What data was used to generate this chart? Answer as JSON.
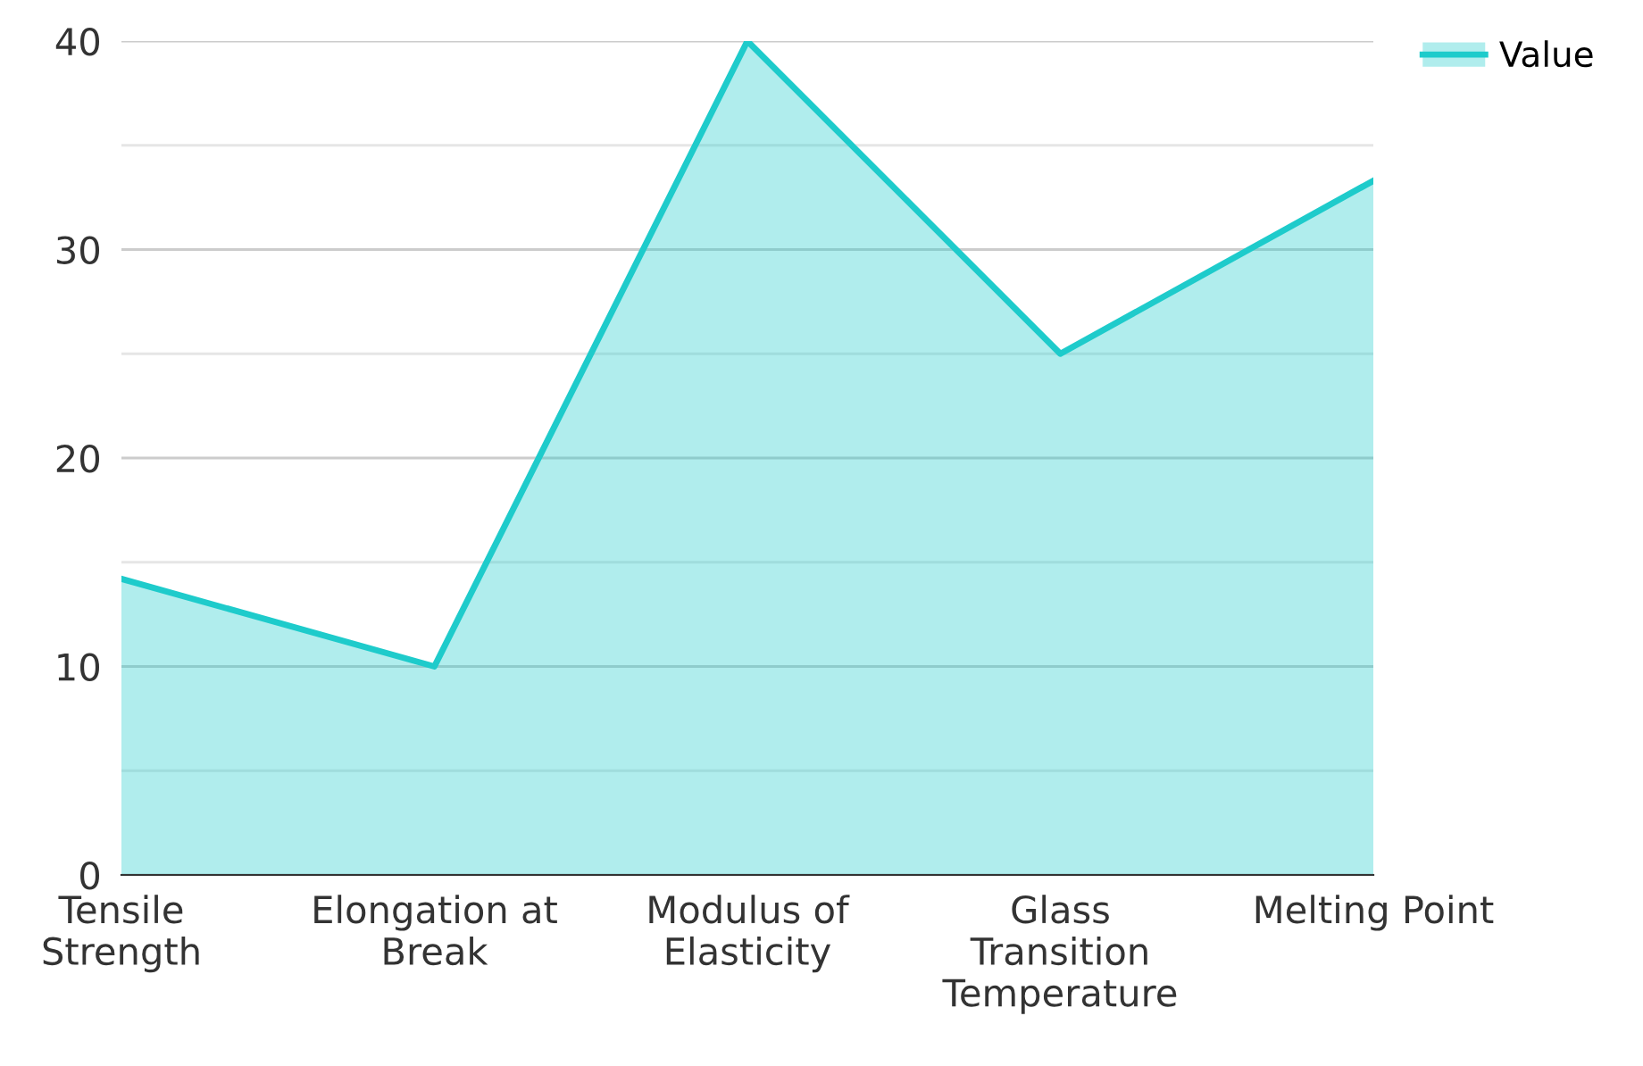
{
  "chart_data": {
    "type": "area",
    "categories": [
      "Tensile Strength",
      "Elongation at Break",
      "Modulus of Elasticity",
      "Glass Transition Temperature",
      "Melting Point"
    ],
    "series": [
      {
        "name": "Value",
        "color": "#1ecbcb",
        "values": [
          14.2,
          10.0,
          40.0,
          25.0,
          33.3
        ]
      }
    ],
    "ylim": [
      0,
      40
    ],
    "yticks": [
      0,
      {
        "value": 5,
        "label": null
      },
      10,
      {
        "value": 15,
        "label": null
      },
      20,
      {
        "value": 25,
        "label": null
      },
      30,
      {
        "value": 35,
        "label": null
      },
      40
    ],
    "grid": "y",
    "legend": "top right"
  }
}
